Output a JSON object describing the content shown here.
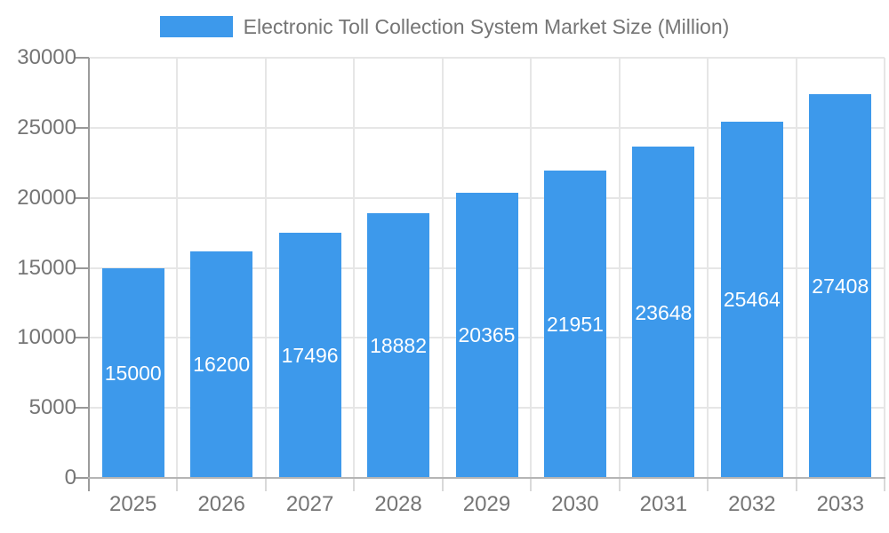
{
  "chart_data": {
    "type": "bar",
    "title": "Electronic Toll Collection System Market Size (Million)",
    "legend_position": "top",
    "categories": [
      "2025",
      "2026",
      "2027",
      "2028",
      "2029",
      "2030",
      "2031",
      "2032",
      "2033"
    ],
    "series": [
      {
        "name": "Electronic Toll Collection System Market Size (Million)",
        "values": [
          15000,
          16200,
          17496,
          18882,
          20365,
          21951,
          23648,
          25464,
          27408
        ]
      }
    ],
    "value_labels_position": "inside-center",
    "xlabel": "",
    "ylabel": "",
    "ylim": [
      0,
      30000
    ],
    "yticks": [
      0,
      5000,
      10000,
      15000,
      20000,
      25000,
      30000
    ],
    "grid": true,
    "colors": {
      "bar": "#3D99EB",
      "bar_label": "#FFFFFF",
      "axis_text": "#757575",
      "legend_text": "#757575",
      "gridline": "#E6E6E6",
      "y_axis_line": "#9B9B9B",
      "x_axis_line": "#B5B5B5",
      "y_tick": "#999999",
      "x_tick": "#D9D9D9",
      "background": "#FFFFFF"
    }
  }
}
